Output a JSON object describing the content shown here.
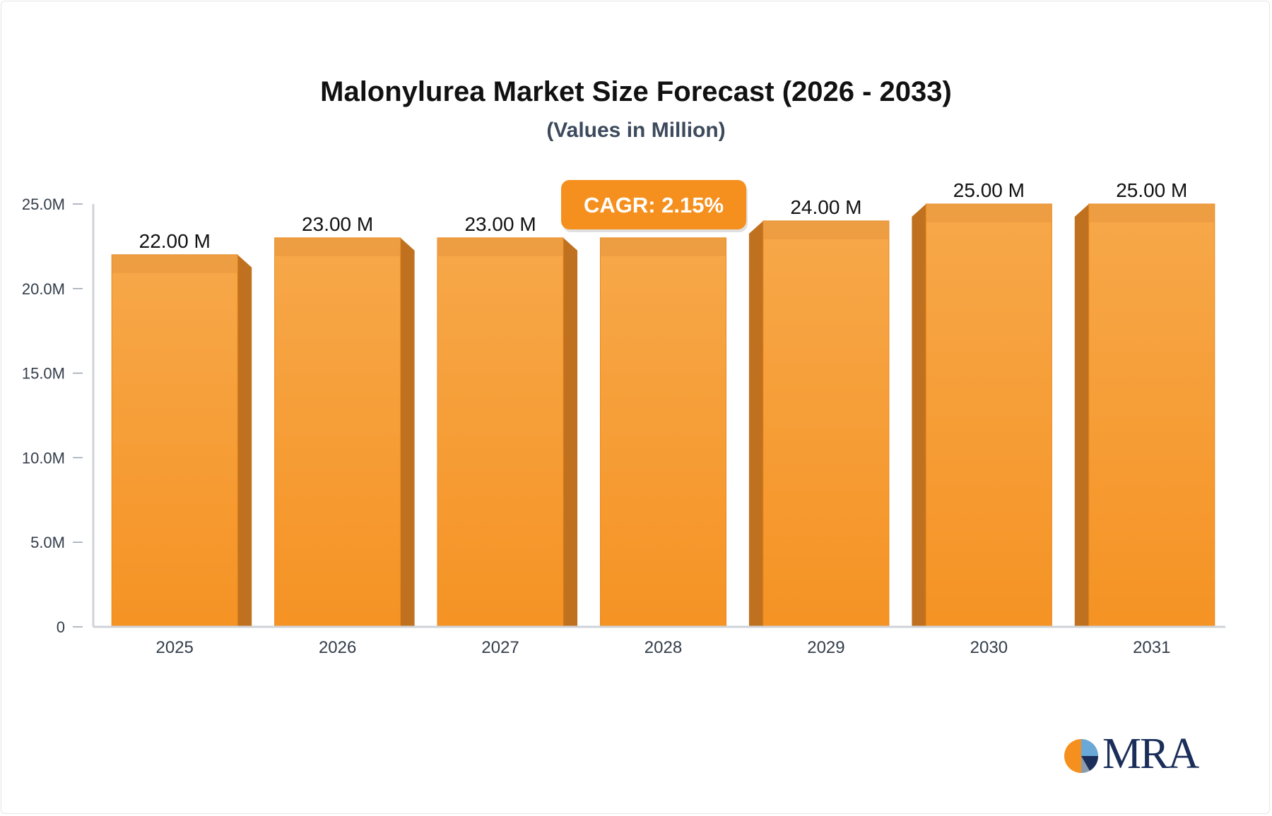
{
  "chart_data": {
    "type": "bar",
    "title": "Malonylurea Market Size Forecast (2026 - 2033)",
    "subtitle": "(Values in Million)",
    "categories": [
      "2025",
      "2026",
      "2027",
      "2028",
      "2029",
      "2030",
      "2031"
    ],
    "values": [
      22,
      23,
      23,
      23,
      24,
      25,
      25
    ],
    "data_labels": [
      "22.00 M",
      "23.00 M",
      "23.00 M",
      "",
      "24.00 M",
      "25.00 M",
      "25.00 M"
    ],
    "ylim": [
      0,
      25
    ],
    "yticks": [
      0,
      5,
      10,
      15,
      20,
      25
    ],
    "ytick_labels": [
      "0",
      "5.0M",
      "10.0M",
      "15.0M",
      "20.0M",
      "25.0M"
    ],
    "xlabel": "",
    "ylabel": "",
    "annotation": "CAGR: 2.15%",
    "grid": false,
    "colors": {
      "bar": "#f5a040",
      "bar_side": "#c0711f",
      "annotation_bg": "#f5901e"
    }
  },
  "logo": {
    "text": "MRA"
  }
}
